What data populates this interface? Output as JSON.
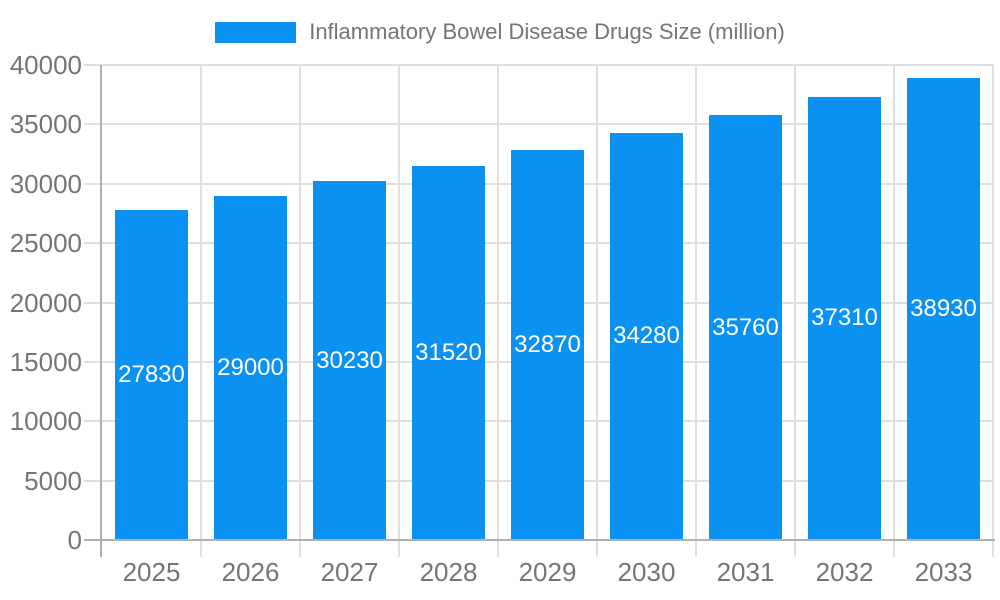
{
  "chart_data": {
    "type": "bar",
    "title": "Inflammatory Bowel Disease Drugs Size (million)",
    "series": [
      {
        "name": "Inflammatory Bowel Disease Drugs Size (million)",
        "values": [
          27830,
          29000,
          30230,
          31520,
          32870,
          34280,
          35760,
          37310,
          38930
        ]
      }
    ],
    "categories": [
      "2025",
      "2026",
      "2027",
      "2028",
      "2029",
      "2030",
      "2031",
      "2032",
      "2033"
    ],
    "data_labels": [
      "27830",
      "29000",
      "30230",
      "31520",
      "32870",
      "34280",
      "35760",
      "37310",
      "38930"
    ],
    "xlabel": "",
    "ylabel": "",
    "ylim": [
      0,
      40000
    ],
    "ytick_step": 5000,
    "yticks": [
      "0",
      "5000",
      "10000",
      "15000",
      "20000",
      "25000",
      "30000",
      "35000",
      "40000"
    ],
    "grid": "on",
    "legend_position": "top",
    "colors": {
      "bar": "#0a91f2",
      "bar_value_label": "#ffffff",
      "axis_text": "#757575",
      "grid_line": "#e0e0e0",
      "axis_line": "#b0b0b0",
      "background": "#ffffff"
    }
  }
}
